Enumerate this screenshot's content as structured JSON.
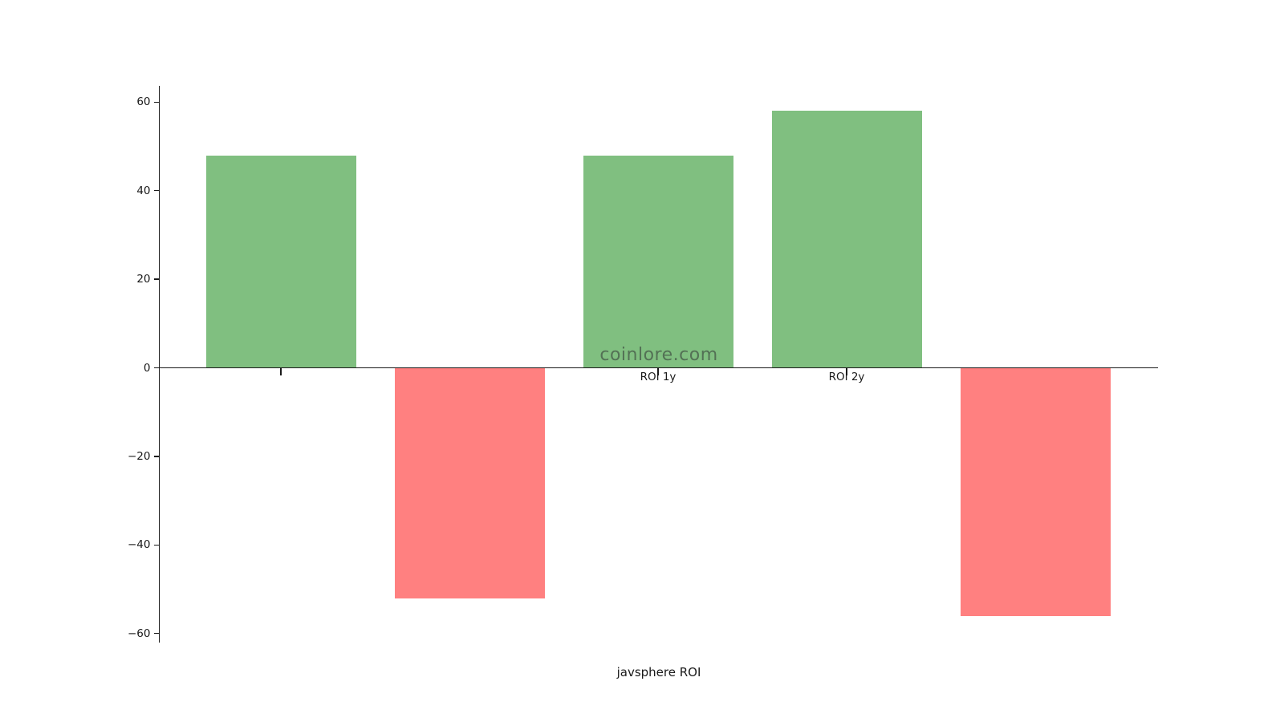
{
  "chart_data": {
    "type": "bar",
    "title": "",
    "categories": [
      "",
      "",
      "ROI 1y",
      "ROI 2y",
      ""
    ],
    "values": [
      48,
      -52,
      48,
      58,
      -56
    ],
    "xlabel": "javsphere ROI",
    "ylabel": "",
    "ylim": [
      -62,
      64
    ],
    "yticks": [
      60,
      40,
      20,
      0,
      -20,
      -40,
      -60
    ],
    "ytick_labels": [
      "60",
      "40",
      "20",
      "0",
      "−20",
      "−40",
      "−60"
    ],
    "x_ticks_shown_at_indices": [
      0,
      2,
      3
    ],
    "grid": false,
    "legend_position": "none",
    "colors": {
      "positive_bar": "#80bf80",
      "negative_bar": "#ff8080",
      "axis": "#1a1a1a"
    },
    "watermark": "coinlore.com"
  }
}
